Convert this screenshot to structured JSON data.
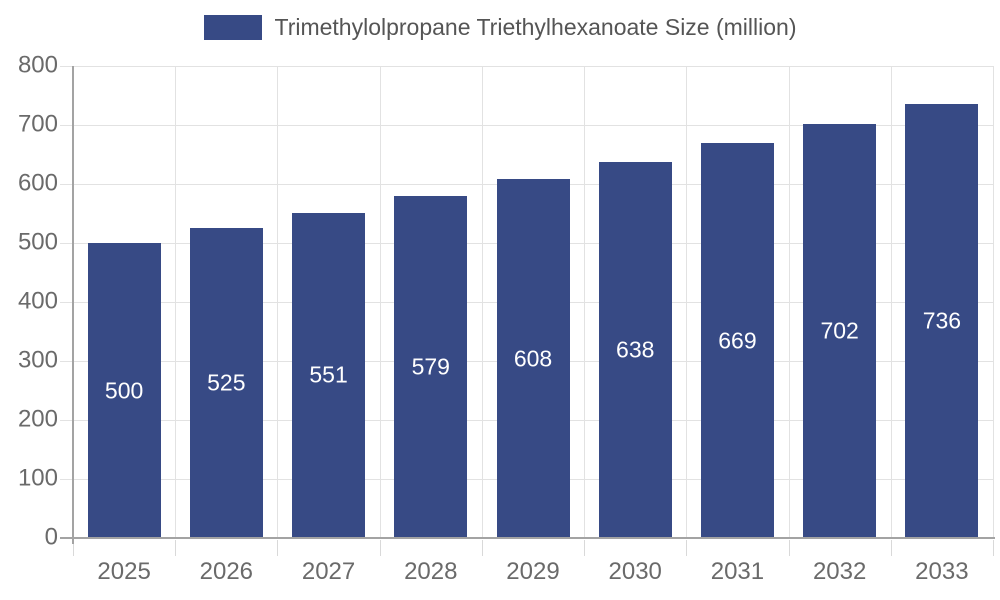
{
  "chart_data": {
    "type": "bar",
    "title": "Trimethylolpropane Triethylhexanoate Size (million)",
    "categories": [
      "2025",
      "2026",
      "2027",
      "2028",
      "2029",
      "2030",
      "2031",
      "2032",
      "2033"
    ],
    "series": [
      {
        "name": "Trimethylolpropane Triethylhexanoate Size (million)",
        "values": [
          500,
          525,
          551,
          579,
          608,
          638,
          669,
          702,
          736
        ]
      }
    ],
    "xlabel": "",
    "ylabel": "",
    "ylim": [
      0,
      800
    ],
    "ytick_step": 100,
    "grid": true,
    "legend_position": "top",
    "value_labels_shown": true,
    "colors": {
      "bar": "#374a85",
      "value_label": "#ffffff",
      "axis_line": "#a3a3a3",
      "grid_line": "#e2e2e2",
      "tick_label": "#6a6a6a",
      "legend_text": "#555555",
      "background": "#ffffff"
    }
  }
}
